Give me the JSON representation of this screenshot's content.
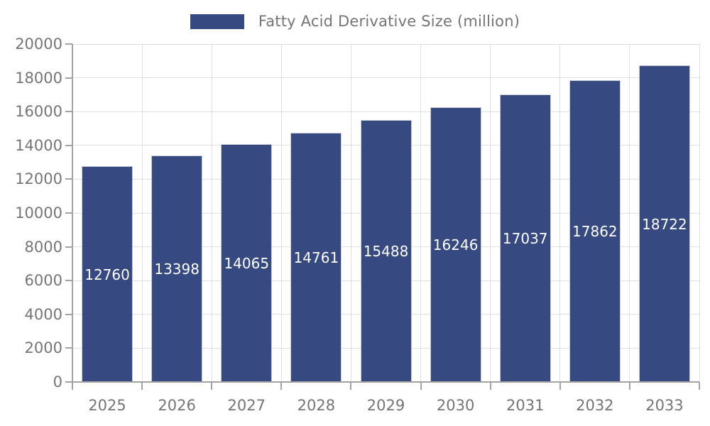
{
  "chart_data": {
    "type": "bar",
    "title": "Fatty Acid Derivative Size (million)",
    "categories": [
      "2025",
      "2026",
      "2027",
      "2028",
      "2029",
      "2030",
      "2031",
      "2032",
      "2033"
    ],
    "values": [
      12760,
      13398,
      14065,
      14761,
      15488,
      16246,
      17037,
      17862,
      18722
    ],
    "xlabel": "",
    "ylabel": "",
    "ylim": [
      0,
      20000
    ],
    "yticks": [
      0,
      2000,
      4000,
      6000,
      8000,
      10000,
      12000,
      14000,
      16000,
      18000,
      20000
    ],
    "grid": true,
    "legend_position": "top-center",
    "value_labels": "centered-inside-bars",
    "colors": {
      "bar": "#364A81",
      "bar_edge": "#C9CBD6",
      "grid": "#DFDFDF",
      "axis": "#A3A3A3",
      "tick_label": "#757575",
      "value_label": "#FFFFFF",
      "background": "#FFFFFF"
    }
  }
}
